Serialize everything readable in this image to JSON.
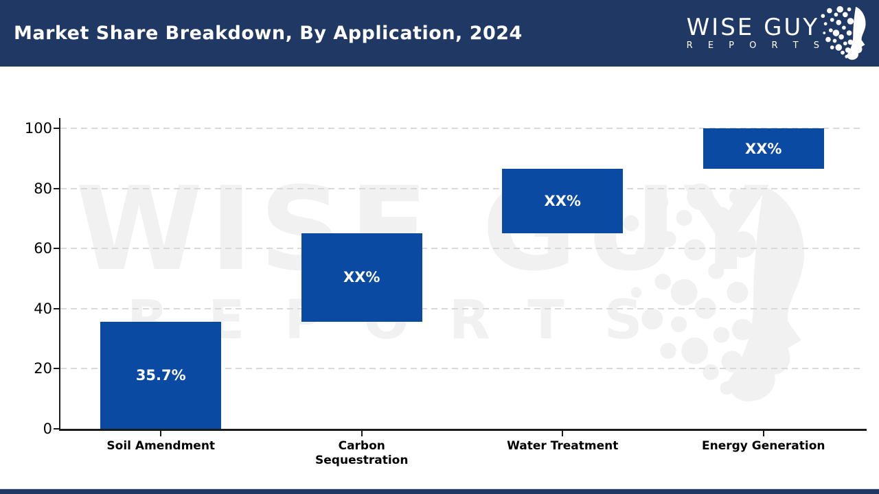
{
  "header": {
    "title": "Market Share Breakdown, By Application, 2024",
    "logo": {
      "primary": "WISE GUY",
      "secondary": "R E P O R T S"
    }
  },
  "watermark": {
    "line1": "WISE GUY",
    "line2": "REPORTS"
  },
  "chart_data": {
    "type": "bar",
    "subtype": "waterfall",
    "title": "Market Share Breakdown, By Application, 2024",
    "categories": [
      "Soil Amendment",
      "Carbon\nSequestration",
      "Water Treatment",
      "Energy Generation"
    ],
    "segments": [
      {
        "category": "Soil Amendment",
        "start": 0,
        "end": 35.7,
        "label": "35.7%"
      },
      {
        "category": "Carbon Sequestration",
        "start": 35.7,
        "end": 65,
        "label": "XX%"
      },
      {
        "category": "Water Treatment",
        "start": 65,
        "end": 86.5,
        "label": "XX%"
      },
      {
        "category": "Energy Generation",
        "start": 86.5,
        "end": 100,
        "label": "XX%"
      }
    ],
    "y_ticks": [
      0,
      20,
      40,
      60,
      80,
      100
    ],
    "ylim": [
      0,
      103
    ],
    "xlabel": "",
    "ylabel": "",
    "grid": "dashed-horizontal",
    "legend": "none",
    "bar_color": "#0B4AA2",
    "bar_label_color": "#FFFFFF",
    "axis_color": "#1A1A1A",
    "grid_color": "#D9D9D9"
  },
  "colors": {
    "header_navy": "#203864",
    "footer_navy": "#203864",
    "watermark_gray": "#F1F1F1",
    "background": "#FFFFFF"
  }
}
